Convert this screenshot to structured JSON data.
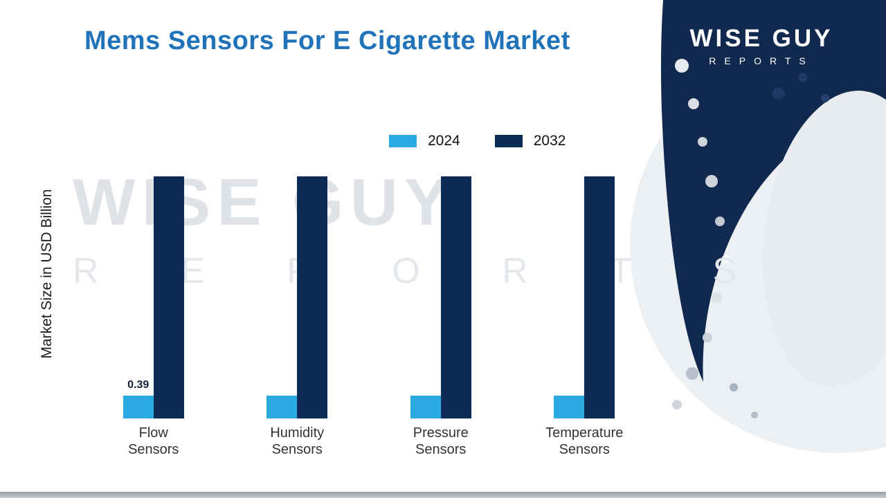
{
  "page_title": "Mems Sensors For E Cigarette Market",
  "logo": {
    "line1": "WISE GUY",
    "line2": "REPORTS"
  },
  "watermark": {
    "line1": "WISE GUY",
    "line2": "R E P O R T S"
  },
  "colors": {
    "title_blue": "#2173b9",
    "series_2024_blue": "#29abe2",
    "series_2032_navy": "#0d2b57",
    "corner_navy": "#12294f",
    "background_gray": "#edf0f3",
    "watermark_gray": "#dfe3e8"
  },
  "chart_data": {
    "type": "bar",
    "title": "Mems Sensors For E Cigarette Market",
    "xlabel": "",
    "ylabel": "Market Size in USD Billion",
    "categories": [
      "Flow Sensors",
      "Humidity Sensors",
      "Pressure Sensors",
      "Temperature Sensors"
    ],
    "series": [
      {
        "name": "2024",
        "color": "#29abe2",
        "values": [
          0.39,
          0.39,
          0.39,
          0.39
        ],
        "labels": [
          "0.39",
          "",
          "",
          ""
        ]
      },
      {
        "name": "2032",
        "color": "#0d2b57",
        "values": [
          4.1,
          4.1,
          4.1,
          4.1
        ],
        "labels": [
          "",
          "",
          "",
          ""
        ]
      }
    ],
    "ylim": [
      0,
      4.1
    ],
    "grid": false,
    "legend_position": "top"
  }
}
